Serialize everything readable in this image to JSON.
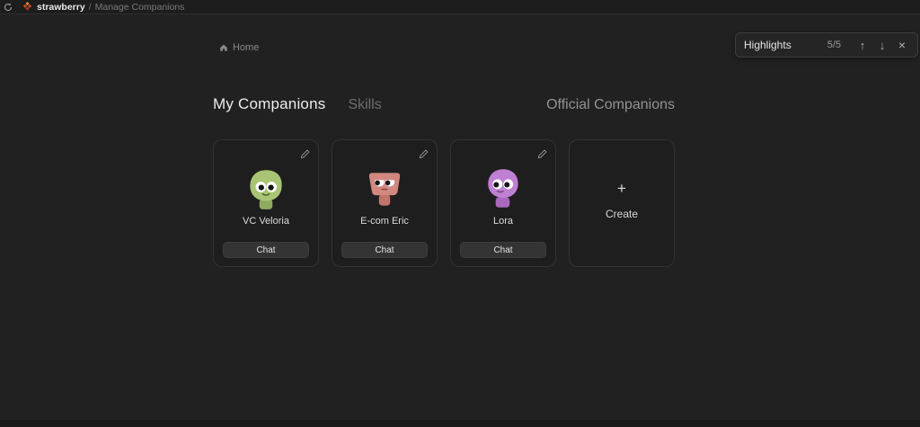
{
  "topbar": {
    "product": "strawberry",
    "separator": "/",
    "page": "Manage Companions"
  },
  "find_bar": {
    "query": "Highlights",
    "count": "5/5",
    "up_icon": "↑",
    "down_icon": "↓",
    "close_icon": "×"
  },
  "breadcrumb": {
    "home_label": "Home"
  },
  "tabs": {
    "my_companions": "My Companions",
    "skills": "Skills",
    "official_companions": "Official Companions"
  },
  "companions": [
    {
      "name": "VC Veloria",
      "chat_label": "Chat",
      "variant": "veloria",
      "head_color": "#a9c474",
      "body_color": "#8fa95f"
    },
    {
      "name": "E-com Eric",
      "chat_label": "Chat",
      "variant": "eric",
      "head_color": "#d28880",
      "body_color": "#c0746a"
    },
    {
      "name": "Lora",
      "chat_label": "Chat",
      "variant": "lora",
      "head_color": "#bf7fd2",
      "body_color": "#a968bd"
    }
  ],
  "create_card": {
    "plus": "+",
    "label": "Create"
  },
  "colors": {
    "page_bg": "#212121",
    "topbar_bg": "#1d1d1d",
    "card_bg": "#1e1e1e",
    "card_border": "#323232",
    "chat_button_bg": "#343434",
    "logo_orange": "#d4572e",
    "logo_orange_light": "#e8823f"
  }
}
